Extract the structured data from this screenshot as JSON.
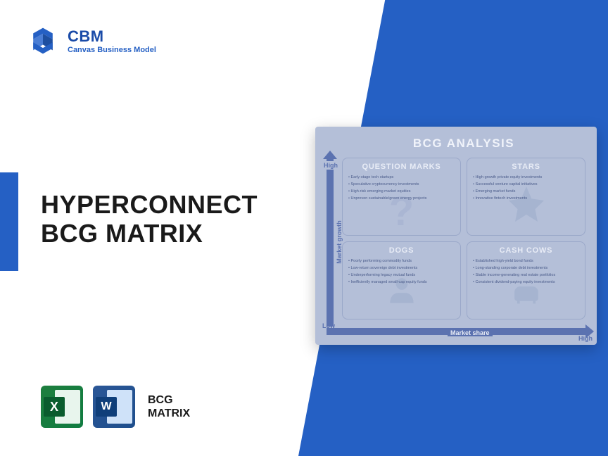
{
  "brand": {
    "name": "CBM",
    "tagline": "Canvas Business Model",
    "logo_color": "#2560c4"
  },
  "main": {
    "title_line1": "HYPERCONNECT",
    "title_line2": "BCG MATRIX"
  },
  "footer": {
    "label_line1": "BCG",
    "label_line2": "MATRIX"
  },
  "matrix": {
    "title": "BCG ANALYSIS",
    "y_axis": "Market growth",
    "x_axis": "Market share",
    "high": "High",
    "low": "Low",
    "colors": {
      "card_bg": "#b4bfd8",
      "axis": "#5b72b0",
      "quad_border": "#9aa8c9",
      "quad_title": "#e8ecf6",
      "item_text": "#4a5b8a"
    },
    "quadrants": {
      "question_marks": {
        "title": "QUESTION MARKS",
        "items": [
          "Early-stage tech startups",
          "Speculative cryptocurrency investments",
          "High-risk emerging market equities",
          "Unproven sustainable/green energy projects"
        ]
      },
      "stars": {
        "title": "STARS",
        "items": [
          "High-growth private equity investments",
          "Successful venture capital initiatives",
          "Emerging market funds",
          "Innovative fintech investments"
        ]
      },
      "dogs": {
        "title": "DOGS",
        "items": [
          "Poorly performing commodity funds",
          "Low-return sovereign debt investments",
          "Underperforming legacy mutual funds",
          "Inefficiently managed small-cap equity funds"
        ]
      },
      "cash_cows": {
        "title": "CASH COWS",
        "items": [
          "Established high-yield bond funds",
          "Long-standing corporate debt investments",
          "Stable income-generating real estate portfolios",
          "Consistent dividend-paying equity investments"
        ]
      }
    }
  }
}
